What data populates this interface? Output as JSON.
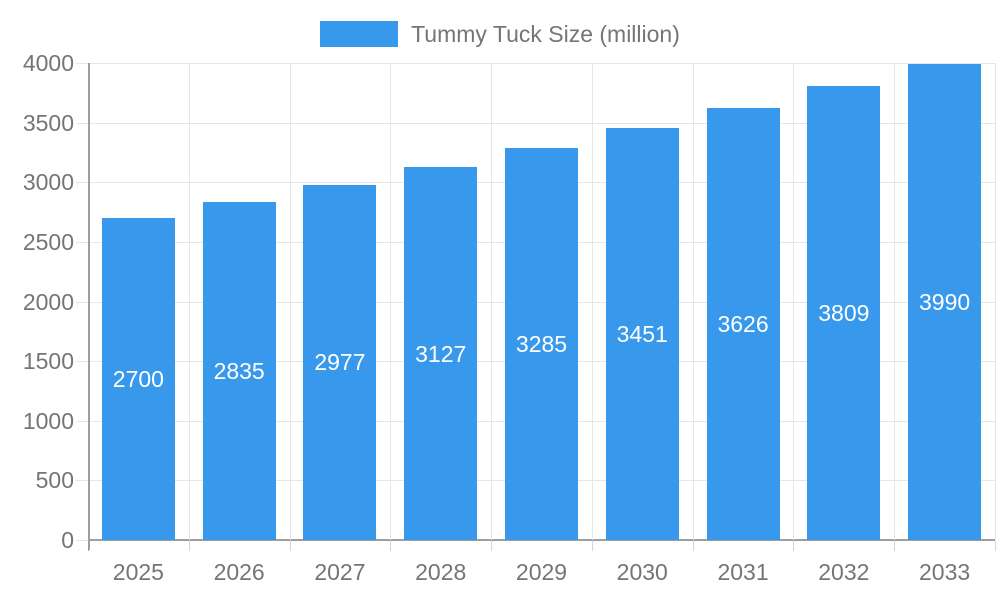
{
  "legend": {
    "label": "Tummy Tuck Size (million)"
  },
  "chart_data": {
    "type": "bar",
    "title": "Tummy Tuck Size (million)",
    "series_name": "Tummy Tuck Size (million)",
    "categories": [
      "2025",
      "2026",
      "2027",
      "2028",
      "2029",
      "2030",
      "2031",
      "2032",
      "2033"
    ],
    "values": [
      2700,
      2835,
      2977,
      3127,
      3285,
      3451,
      3626,
      3809,
      3990
    ],
    "value_labels": [
      "2700",
      "2835",
      "2977",
      "3127",
      "3285",
      "3451",
      "3626",
      "3809",
      "3990"
    ],
    "xlabel": "",
    "ylabel": "",
    "ylim": [
      0,
      4000
    ],
    "y_ticks": [
      0,
      500,
      1000,
      1500,
      2000,
      2500,
      3000,
      3500,
      4000
    ],
    "grid": true,
    "legend_position": "top-center",
    "colors": {
      "bar": "#3899EC",
      "bar_value_text": "#FFFFFF",
      "axis_text": "#757575",
      "grid_line": "#E6E6E6",
      "axis_line": "#9E9E9E",
      "minor_tick": "#D6D6D6"
    }
  }
}
